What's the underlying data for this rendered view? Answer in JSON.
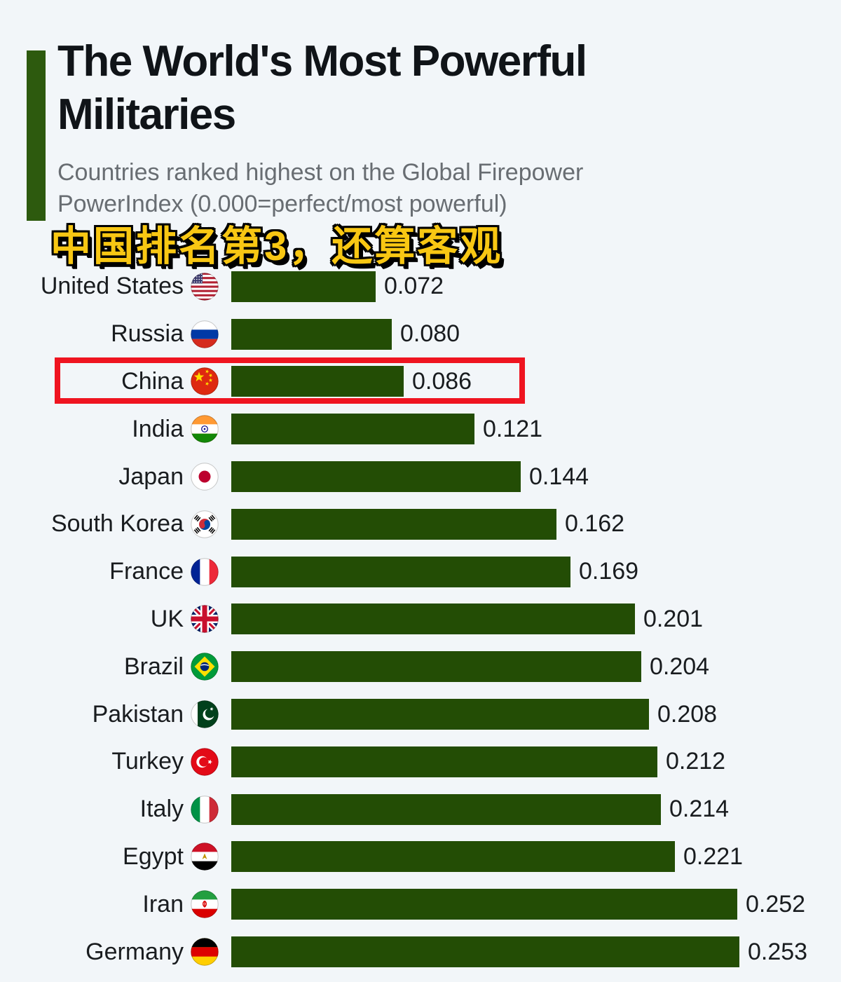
{
  "header": {
    "title": "The World's Most Powerful Militaries",
    "subtitle": "Countries ranked highest on the Global Firepower PowerIndex (0.000=perfect/most powerful)"
  },
  "overlay": {
    "caption": "中国排名第3，还算客观"
  },
  "colors": {
    "background": "#f2f6f9",
    "bar": "#234d05",
    "accent_bar": "#2d5a0e",
    "highlight_border": "#ef1420",
    "caption_fill": "#f8c713",
    "title_text": "#101418",
    "subtitle_text": "#686d72"
  },
  "chart_data": {
    "type": "bar",
    "orientation": "horizontal",
    "title": "The World's Most Powerful Militaries",
    "subtitle": "Countries ranked highest on the Global Firepower PowerIndex (0.000=perfect/most powerful)",
    "value_name": "Global Firepower PowerIndex",
    "value_format": "0.000",
    "xlim": [
      0,
      0.253
    ],
    "grid": false,
    "legend": false,
    "highlighted_country": "China",
    "rows": [
      {
        "country": "United States",
        "flag": "us",
        "value": 0.072
      },
      {
        "country": "Russia",
        "flag": "ru",
        "value": 0.08
      },
      {
        "country": "China",
        "flag": "cn",
        "value": 0.086,
        "highlighted": true
      },
      {
        "country": "India",
        "flag": "in",
        "value": 0.121
      },
      {
        "country": "Japan",
        "flag": "jp",
        "value": 0.144
      },
      {
        "country": "South Korea",
        "flag": "kr",
        "value": 0.162
      },
      {
        "country": "France",
        "flag": "fr",
        "value": 0.169
      },
      {
        "country": "UK",
        "flag": "gb",
        "value": 0.201
      },
      {
        "country": "Brazil",
        "flag": "br",
        "value": 0.204
      },
      {
        "country": "Pakistan",
        "flag": "pk",
        "value": 0.208
      },
      {
        "country": "Turkey",
        "flag": "tr",
        "value": 0.212
      },
      {
        "country": "Italy",
        "flag": "it",
        "value": 0.214
      },
      {
        "country": "Egypt",
        "flag": "eg",
        "value": 0.221
      },
      {
        "country": "Iran",
        "flag": "ir",
        "value": 0.252
      },
      {
        "country": "Germany",
        "flag": "de",
        "value": 0.253
      }
    ]
  }
}
